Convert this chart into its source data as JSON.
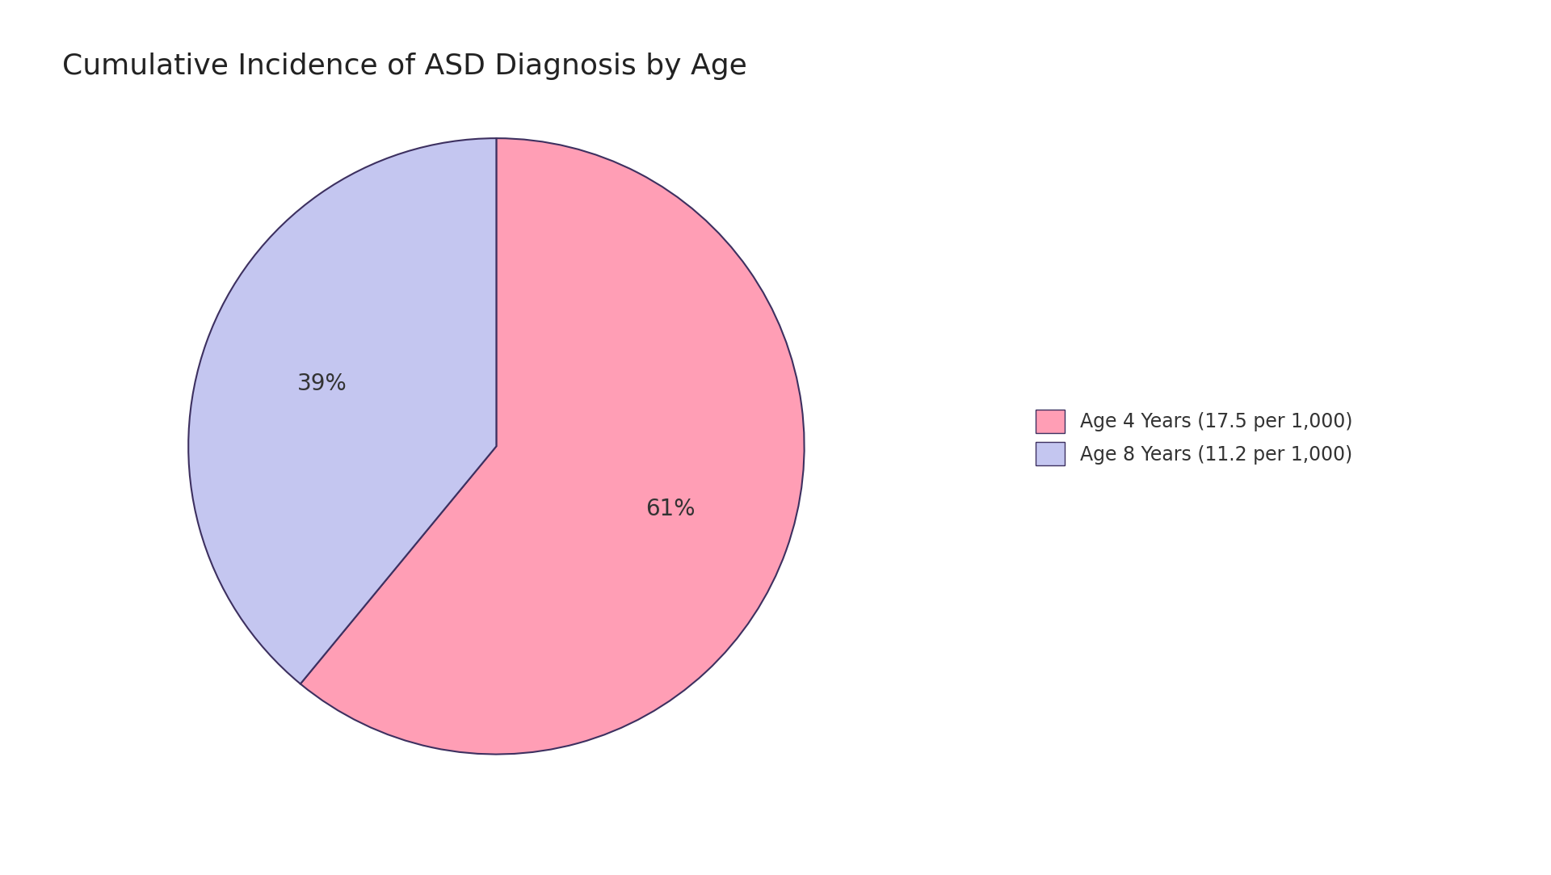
{
  "title": "Cumulative Incidence of ASD Diagnosis by Age",
  "slices": [
    17.5,
    11.2
  ],
  "labels": [
    "Age 4 Years (17.5 per 1,000)",
    "Age 8 Years (11.2 per 1,000)"
  ],
  "colors": [
    "#FF9EB5",
    "#C4C6F0"
  ],
  "edge_color": "#3D3060",
  "pct_labels": [
    "61%",
    "39%"
  ],
  "startangle": 90,
  "title_fontsize": 26,
  "pct_fontsize": 20,
  "background_color": "#FFFFFF",
  "legend_fontsize": 17
}
